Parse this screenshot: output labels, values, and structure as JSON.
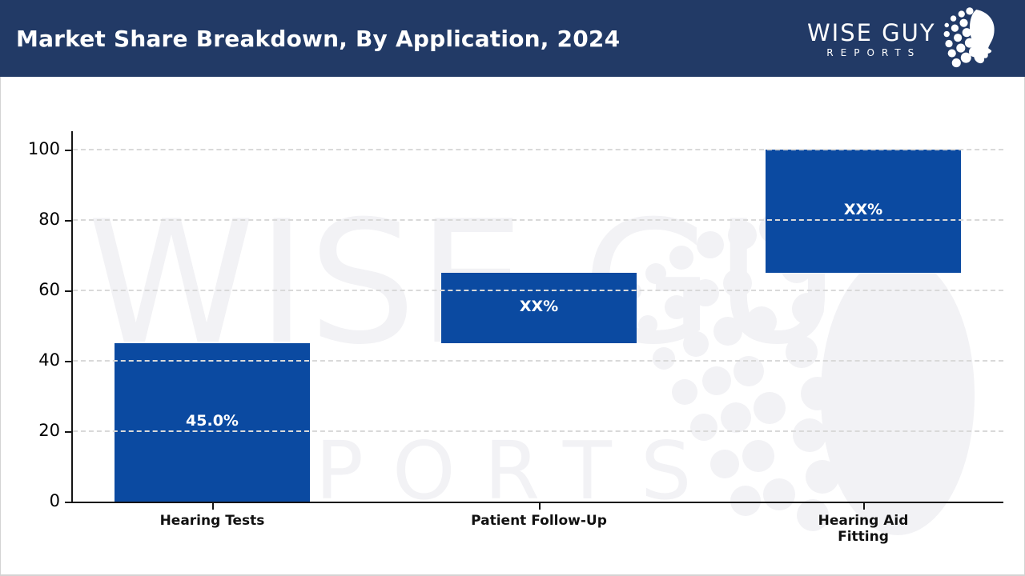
{
  "header": {
    "title": "Market Share Breakdown, By Application, 2024",
    "bg_color": "#223a66",
    "logo": {
      "wordmark": "WISE GUY",
      "sub": "REPORTS"
    }
  },
  "watermark": {
    "wordmark": "WISE GUY",
    "sub": "REPORTS"
  },
  "chart_data": {
    "type": "bar",
    "subtype": "floating-segment-bars",
    "title": "Market Share Breakdown, By Application, 2024",
    "categories": [
      "Hearing Tests",
      "Patient Follow-Up",
      "Hearing Aid Fitting"
    ],
    "category_label_lines": [
      [
        "Hearing Tests"
      ],
      [
        "Patient Follow-Up"
      ],
      [
        "Hearing Aid",
        "Fitting"
      ]
    ],
    "segments": [
      {
        "category": "Hearing Tests",
        "start": 0,
        "end": 45,
        "value": 45,
        "value_label": "45.0%"
      },
      {
        "category": "Patient Follow-Up",
        "start": 45,
        "end": 65,
        "value": 20,
        "value_label": "XX%"
      },
      {
        "category": "Hearing Aid Fitting",
        "start": 65,
        "end": 100,
        "value": 35,
        "value_label": "XX%"
      }
    ],
    "ylim": [
      0,
      100
    ],
    "yticks": [
      0,
      20,
      40,
      60,
      80,
      100
    ],
    "grid": "horizontal-dashed",
    "legend": "none",
    "xlabel": "",
    "ylabel": "",
    "bar_color": "#0b4aa1",
    "bar_label_color": "#ffffff",
    "axis_color": "#141414",
    "gridline_color": "#d9d9d9"
  }
}
